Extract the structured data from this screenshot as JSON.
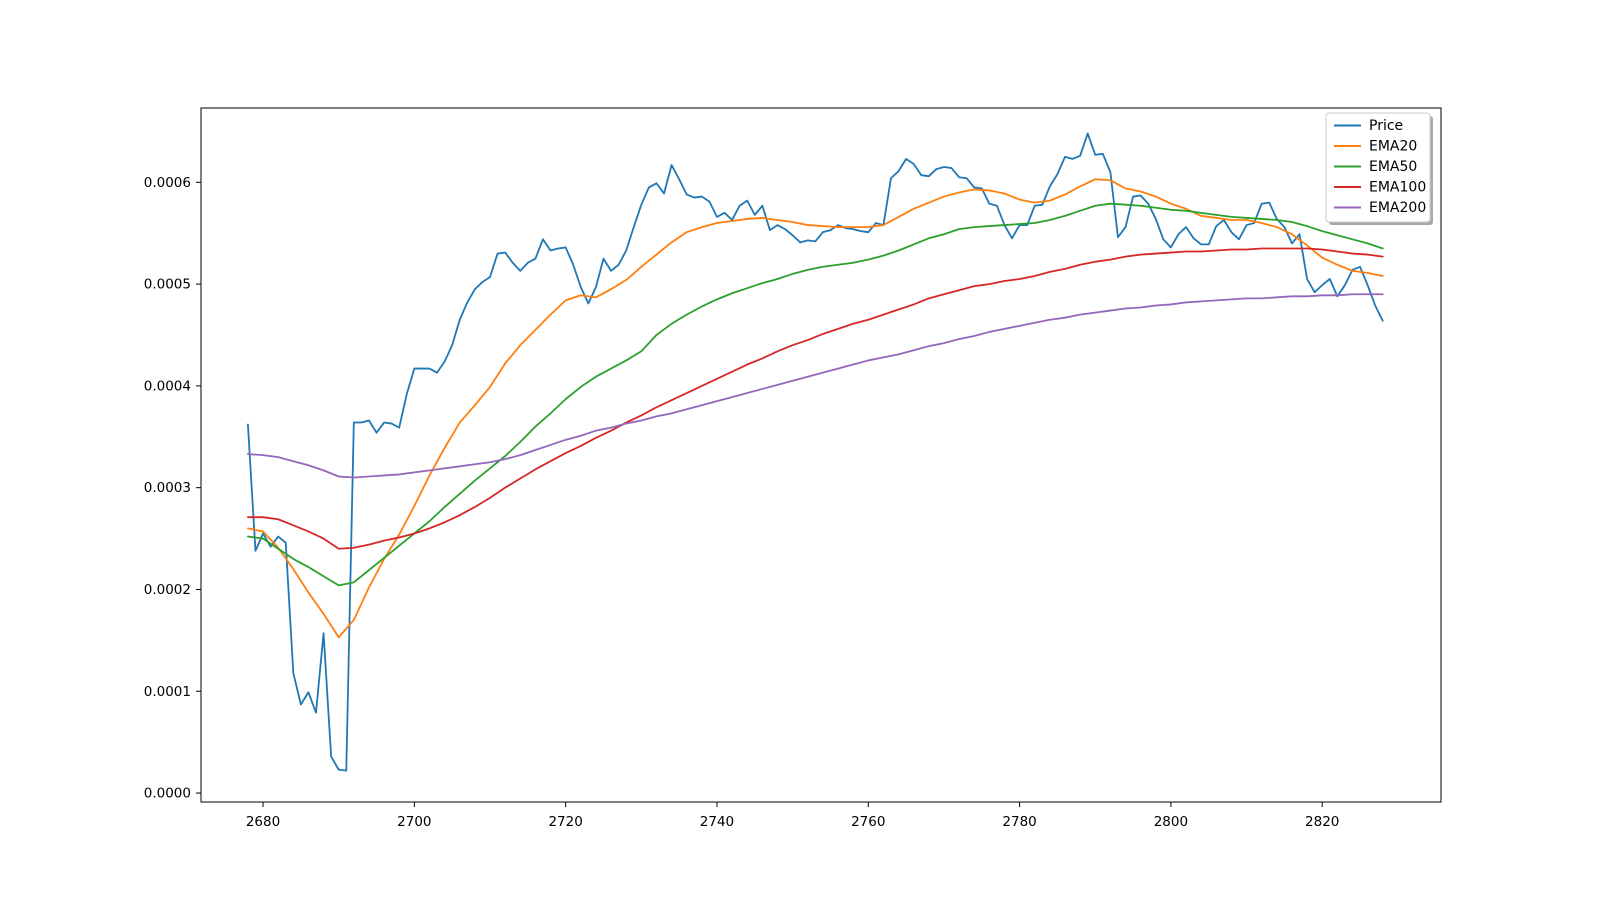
{
  "figure": {
    "background": "#ffffff",
    "spine_color": "#000000",
    "tick_color": "#000000"
  },
  "chart_data": {
    "type": "line",
    "title": "",
    "xlabel": "",
    "ylabel": "",
    "grid": false,
    "xlim": [
      2671.8,
      2835.7
    ],
    "ylim": [
      -8.8e-06,
      0.000673
    ],
    "x_ticks": [
      {
        "value": 2680,
        "label": "2680"
      },
      {
        "value": 2700,
        "label": "2700"
      },
      {
        "value": 2720,
        "label": "2720"
      },
      {
        "value": 2740,
        "label": "2740"
      },
      {
        "value": 2760,
        "label": "2760"
      },
      {
        "value": 2780,
        "label": "2780"
      },
      {
        "value": 2800,
        "label": "2800"
      },
      {
        "value": 2820,
        "label": "2820"
      }
    ],
    "y_ticks": [
      {
        "value": 0.0,
        "label": "0.0000"
      },
      {
        "value": 0.0001,
        "label": "0.0001"
      },
      {
        "value": 0.0002,
        "label": "0.0002"
      },
      {
        "value": 0.0003,
        "label": "0.0003"
      },
      {
        "value": 0.0004,
        "label": "0.0004"
      },
      {
        "value": 0.0005,
        "label": "0.0005"
      },
      {
        "value": 0.0006,
        "label": "0.0006"
      }
    ],
    "legend": {
      "position": "upper right",
      "labels": [
        "Price",
        "EMA20",
        "EMA50",
        "EMA100",
        "EMA200"
      ],
      "border_color": "#cccccc",
      "shadow_color": "#a9a9a9",
      "background": "#ffffff"
    },
    "unit_scale": 1e-06,
    "series": [
      {
        "name": "Price",
        "color": "#1f77b4",
        "x_start": 2678,
        "x_step": 1,
        "values": [
          362,
          238,
          255,
          242,
          252,
          246,
          118,
          87,
          99,
          79,
          157,
          36,
          23,
          22,
          364,
          364,
          366,
          354,
          364,
          363,
          359,
          392,
          417,
          417,
          417,
          413,
          424,
          440,
          465,
          482,
          495,
          502,
          507,
          530,
          531,
          521,
          513,
          521,
          525,
          544,
          533,
          535,
          536,
          519,
          497,
          481,
          497,
          525,
          513,
          519,
          533,
          556,
          578,
          595,
          599,
          589,
          617,
          603,
          588,
          585,
          586,
          581,
          566,
          570,
          563,
          577,
          582,
          568,
          577,
          553,
          558,
          554,
          548,
          541,
          543,
          542,
          551,
          553,
          558,
          555,
          554,
          552,
          551,
          560,
          558,
          604,
          611,
          623,
          618,
          607,
          606,
          613,
          615,
          614,
          605,
          604,
          595,
          594,
          579,
          577,
          558,
          545,
          558,
          558,
          577,
          578,
          596,
          608,
          625,
          623,
          626,
          648,
          627,
          628,
          610,
          546,
          556,
          586,
          587,
          579,
          564,
          544,
          536,
          549,
          556,
          545,
          539,
          539,
          557,
          563,
          551,
          544,
          558,
          560,
          579,
          580,
          564,
          556,
          540,
          549,
          505,
          492,
          499,
          505,
          488,
          499,
          514,
          517,
          499,
          479,
          464
        ]
      },
      {
        "name": "EMA20",
        "color": "#ff7f0e",
        "x_start": 2678,
        "x_step": 2,
        "values": [
          260,
          257,
          241,
          220,
          197,
          176,
          153,
          170,
          202,
          230,
          254,
          282,
          312,
          339,
          364,
          381,
          399,
          422,
          440,
          455,
          470,
          484,
          489,
          487,
          495,
          504,
          517,
          529,
          541,
          551,
          556,
          560,
          562,
          564,
          565,
          563,
          561,
          558,
          557,
          556,
          556,
          556,
          558,
          566,
          574,
          580,
          586,
          590,
          593,
          592,
          589,
          583,
          580,
          582,
          588,
          596,
          603,
          602,
          594,
          591,
          586,
          579,
          574,
          567,
          565,
          563,
          563,
          560,
          556,
          549,
          538,
          526,
          519,
          513,
          511,
          508
        ]
      },
      {
        "name": "EMA50",
        "color": "#2ca02c",
        "x_start": 2678,
        "x_step": 2,
        "values": [
          252,
          250,
          240,
          230,
          222,
          213,
          204,
          207,
          219,
          231,
          243,
          255,
          267,
          281,
          294,
          307,
          319,
          331,
          345,
          360,
          373,
          387,
          399,
          409,
          417,
          425,
          434,
          450,
          461,
          470,
          478,
          485,
          491,
          496,
          501,
          505,
          510,
          514,
          517,
          519,
          521,
          524,
          528,
          533,
          539,
          545,
          549,
          554,
          556,
          557,
          558,
          559,
          560,
          563,
          567,
          572,
          577,
          579,
          578,
          577,
          575,
          573,
          572,
          570,
          568,
          566,
          565,
          564,
          563,
          561,
          557,
          552,
          548,
          544,
          540,
          535
        ]
      },
      {
        "name": "EMA100",
        "color": "#d62728",
        "x_start": 2678,
        "x_step": 2,
        "values": [
          271,
          271,
          269,
          263,
          257,
          250,
          240,
          241,
          244,
          248,
          251,
          255,
          260,
          266,
          273,
          281,
          290,
          300,
          309,
          318,
          326,
          334,
          341,
          349,
          356,
          364,
          371,
          379,
          386,
          393,
          400,
          407,
          414,
          421,
          427,
          434,
          440,
          445,
          451,
          456,
          461,
          465,
          470,
          475,
          480,
          486,
          490,
          494,
          498,
          500,
          503,
          505,
          508,
          512,
          515,
          519,
          522,
          524,
          527,
          529,
          530,
          531,
          532,
          532,
          533,
          534,
          534,
          535,
          535,
          535,
          535,
          534,
          532,
          530,
          529,
          527
        ]
      },
      {
        "name": "EMA200",
        "color": "#9467bd",
        "x_start": 2678,
        "x_step": 2,
        "values": [
          333,
          332,
          330,
          326,
          322,
          317,
          311,
          310,
          311,
          312,
          313,
          315,
          317,
          319,
          321,
          323,
          325,
          328,
          332,
          337,
          342,
          347,
          351,
          356,
          359,
          363,
          366,
          370,
          373,
          377,
          381,
          385,
          389,
          393,
          397,
          401,
          405,
          409,
          413,
          417,
          421,
          425,
          428,
          431,
          435,
          439,
          442,
          446,
          449,
          453,
          456,
          459,
          462,
          465,
          467,
          470,
          472,
          474,
          476,
          477,
          479,
          480,
          482,
          483,
          484,
          485,
          486,
          486,
          487,
          488,
          488,
          489,
          489,
          490,
          490,
          490
        ]
      }
    ]
  }
}
